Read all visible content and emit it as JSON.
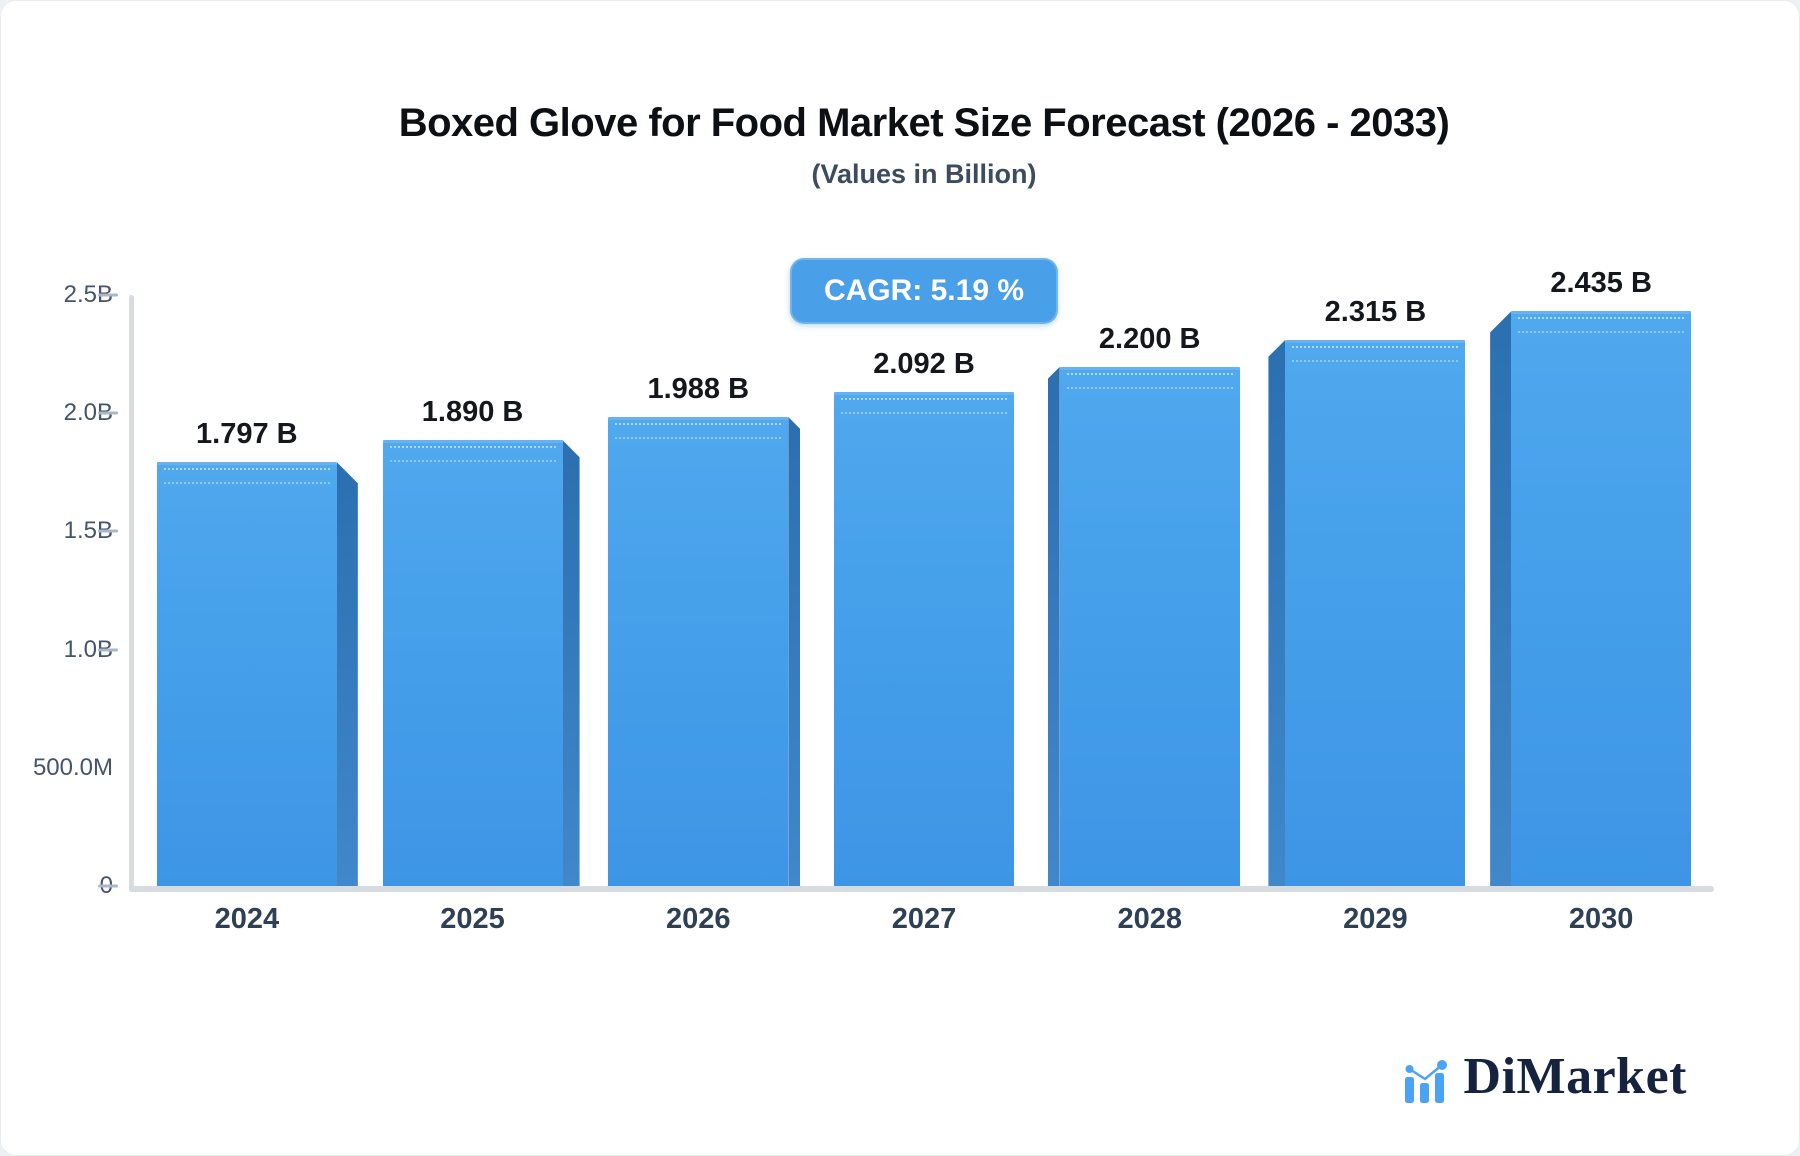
{
  "header": {
    "title": "Boxed Glove for Food Market Size Forecast (2026 - 2033)",
    "subtitle": "(Values in Billion)",
    "cagr_label": "CAGR: 5.19 %"
  },
  "footer": {
    "brand": "DiMarket"
  },
  "colors": {
    "bar_top": "#50a8ee",
    "bar_mid": "#46a0ea",
    "bar_bottom": "#3e95e6",
    "bar_cap": "#66b2f1",
    "bar_side_dark": "#2b6fb0",
    "bar_side_light": "#4088ca",
    "badge_bg": "#49a0e8",
    "axis_line": "#d8dce1",
    "tick_dash": "#a9b7c9",
    "axis_text": "#44546b",
    "x_text": "#2e4054",
    "value_text": "#14171c",
    "logo_navy": "#16233f",
    "logo_blue": "#4aa3f5"
  },
  "chart_data": {
    "type": "bar",
    "title": "Boxed Glove for Food Market Size Forecast (2026 - 2033)",
    "subtitle": "(Values in Billion)",
    "annotation": "CAGR: 5.19 %",
    "categories": [
      "2024",
      "2025",
      "2026",
      "2027",
      "2028",
      "2029",
      "2030"
    ],
    "values": [
      1.797,
      1.89,
      1.988,
      2.092,
      2.2,
      2.315,
      2.435
    ],
    "value_labels": [
      "1.797 B",
      "1.890 B",
      "1.988 B",
      "2.092 B",
      "2.200 B",
      "2.315 B",
      "2.435 B"
    ],
    "unit": "Billion",
    "ylim": [
      0,
      2.5
    ],
    "yticks": [
      {
        "label": "2.5B",
        "value": 2.5,
        "dash": true
      },
      {
        "label": "2.0B",
        "value": 2.0,
        "dash": true
      },
      {
        "label": "1.5B",
        "value": 1.5,
        "dash": true
      },
      {
        "label": "1.0B",
        "value": 1.0,
        "dash": true
      },
      {
        "label": "500.0M",
        "value": 0.5,
        "dash": false
      },
      {
        "label": "0",
        "value": 0,
        "dash": true
      }
    ],
    "grid": false,
    "legend": false,
    "bar_style": "3d-perspective-center"
  }
}
